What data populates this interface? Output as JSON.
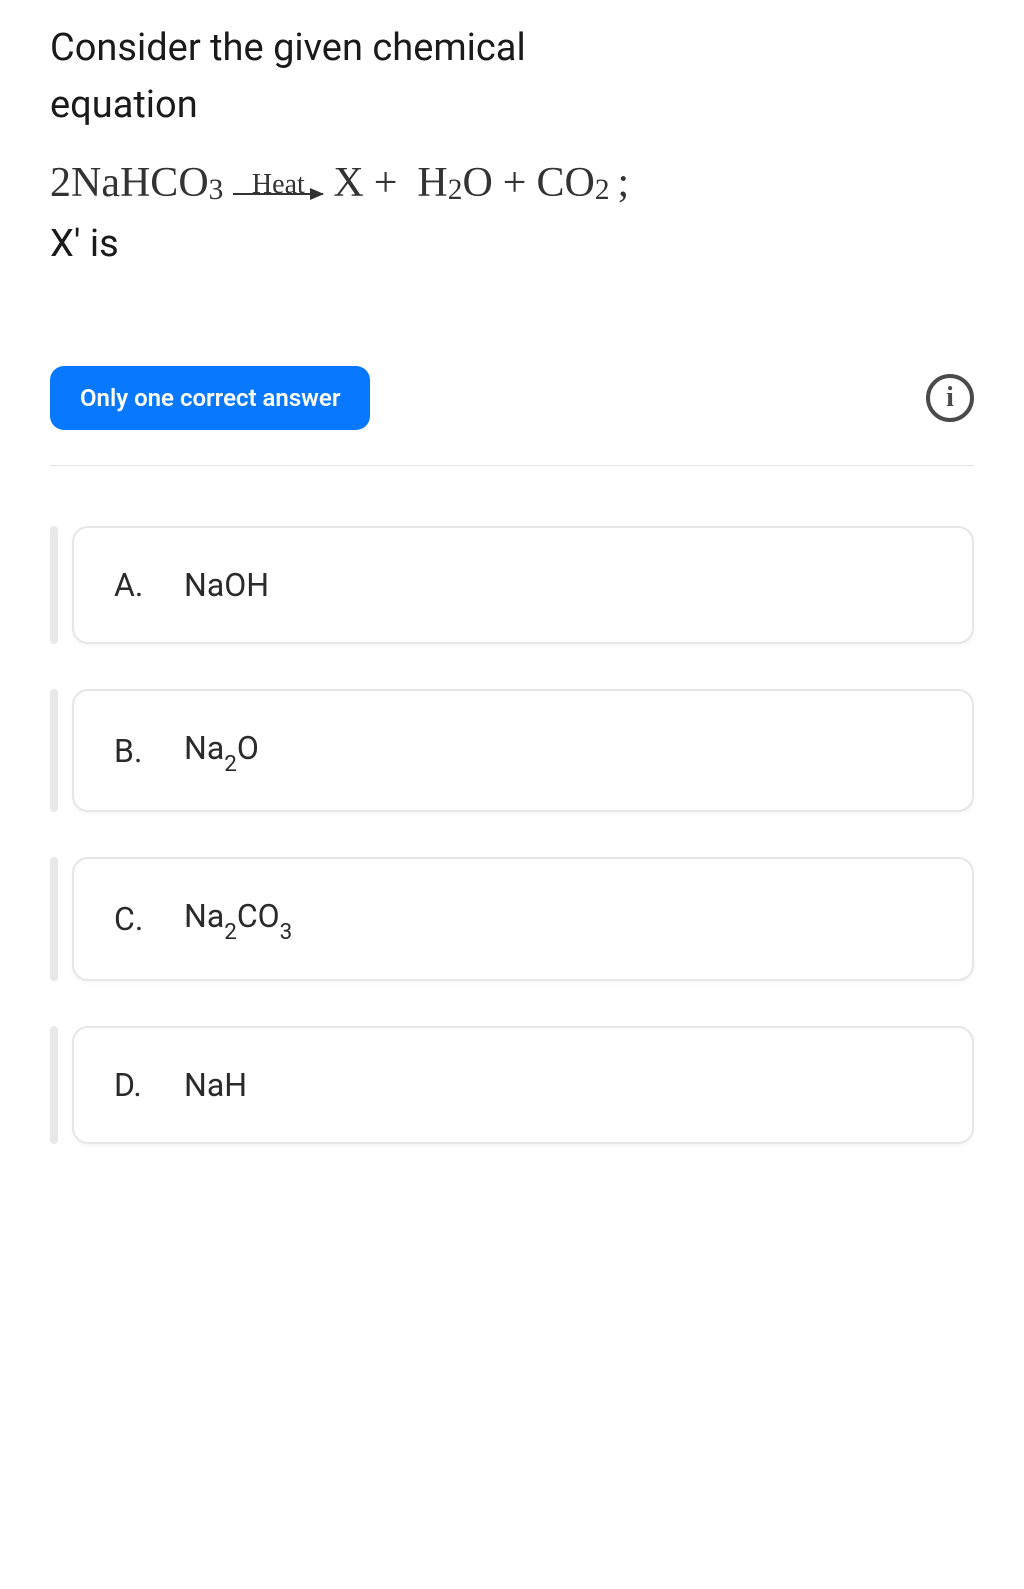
{
  "question": {
    "line1": "Consider the given chemical",
    "line2": "equation"
  },
  "equation": {
    "reactant_coef": "2",
    "reactant": "NaHCO",
    "reactant_sub": "3",
    "arrow_label": "Heat",
    "product_x": "X",
    "plus1": "+",
    "product_h2o_a": "H",
    "product_h2o_sub": "2",
    "product_h2o_b": "O",
    "plus2": "+",
    "product_co2_a": "CO",
    "product_co2_sub": "2",
    "tail": ";"
  },
  "x_is": "X' is",
  "badge": "Only one correct answer",
  "info_icon": "i",
  "options": [
    {
      "letter": "A.",
      "text_plain": "NaOH",
      "parts": [
        {
          "t": "NaOH"
        }
      ]
    },
    {
      "letter": "B.",
      "text_plain": "Na2O",
      "parts": [
        {
          "t": "Na"
        },
        {
          "s": "2"
        },
        {
          "t": "O"
        }
      ]
    },
    {
      "letter": "C.",
      "text_plain": "Na2CO3",
      "parts": [
        {
          "t": "Na"
        },
        {
          "s": "2"
        },
        {
          "t": "CO"
        },
        {
          "s": "3"
        }
      ]
    },
    {
      "letter": "D.",
      "text_plain": "NaH",
      "parts": [
        {
          "t": "NaH"
        }
      ]
    }
  ],
  "colors": {
    "badge_bg": "#0879ff",
    "badge_text": "#ffffff",
    "border": "#e6e6e6",
    "text": "#1a1a1a"
  }
}
